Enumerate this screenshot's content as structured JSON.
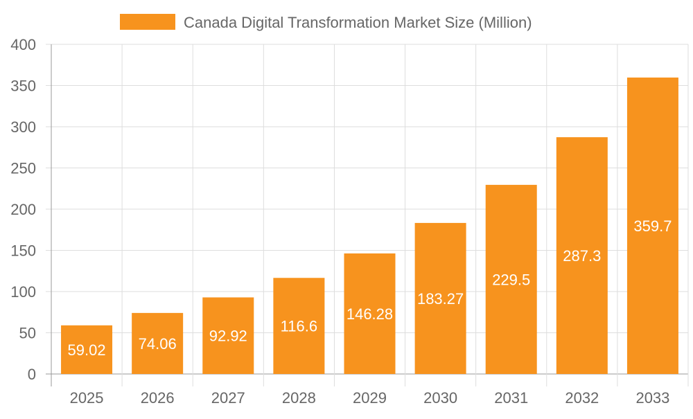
{
  "chart_data": {
    "type": "bar",
    "title": "",
    "legend": {
      "position": "top",
      "entries": [
        "Canada Digital Transformation Market Size (Million)"
      ]
    },
    "categories": [
      "2025",
      "2026",
      "2027",
      "2028",
      "2029",
      "2030",
      "2031",
      "2032",
      "2033"
    ],
    "series": [
      {
        "name": "Canada Digital Transformation Market Size (Million)",
        "values": [
          59.02,
          74.06,
          92.92,
          116.6,
          146.28,
          183.27,
          229.5,
          287.3,
          359.7
        ],
        "labels": [
          "59.02",
          "74.06",
          "92.92",
          "116.6",
          "146.28",
          "183.27",
          "229.5",
          "287.3",
          "359.7"
        ],
        "color": "#f7931e"
      }
    ],
    "xlabel": "",
    "ylabel": "",
    "ylim": [
      0,
      400
    ],
    "yticks": [
      "0",
      "50",
      "100",
      "150",
      "200",
      "250",
      "300",
      "350",
      "400"
    ],
    "grid": true,
    "colors": {
      "grid": "#dddddd",
      "axis": "#999999",
      "text": "#666666",
      "data_label": "#ffffff"
    }
  }
}
